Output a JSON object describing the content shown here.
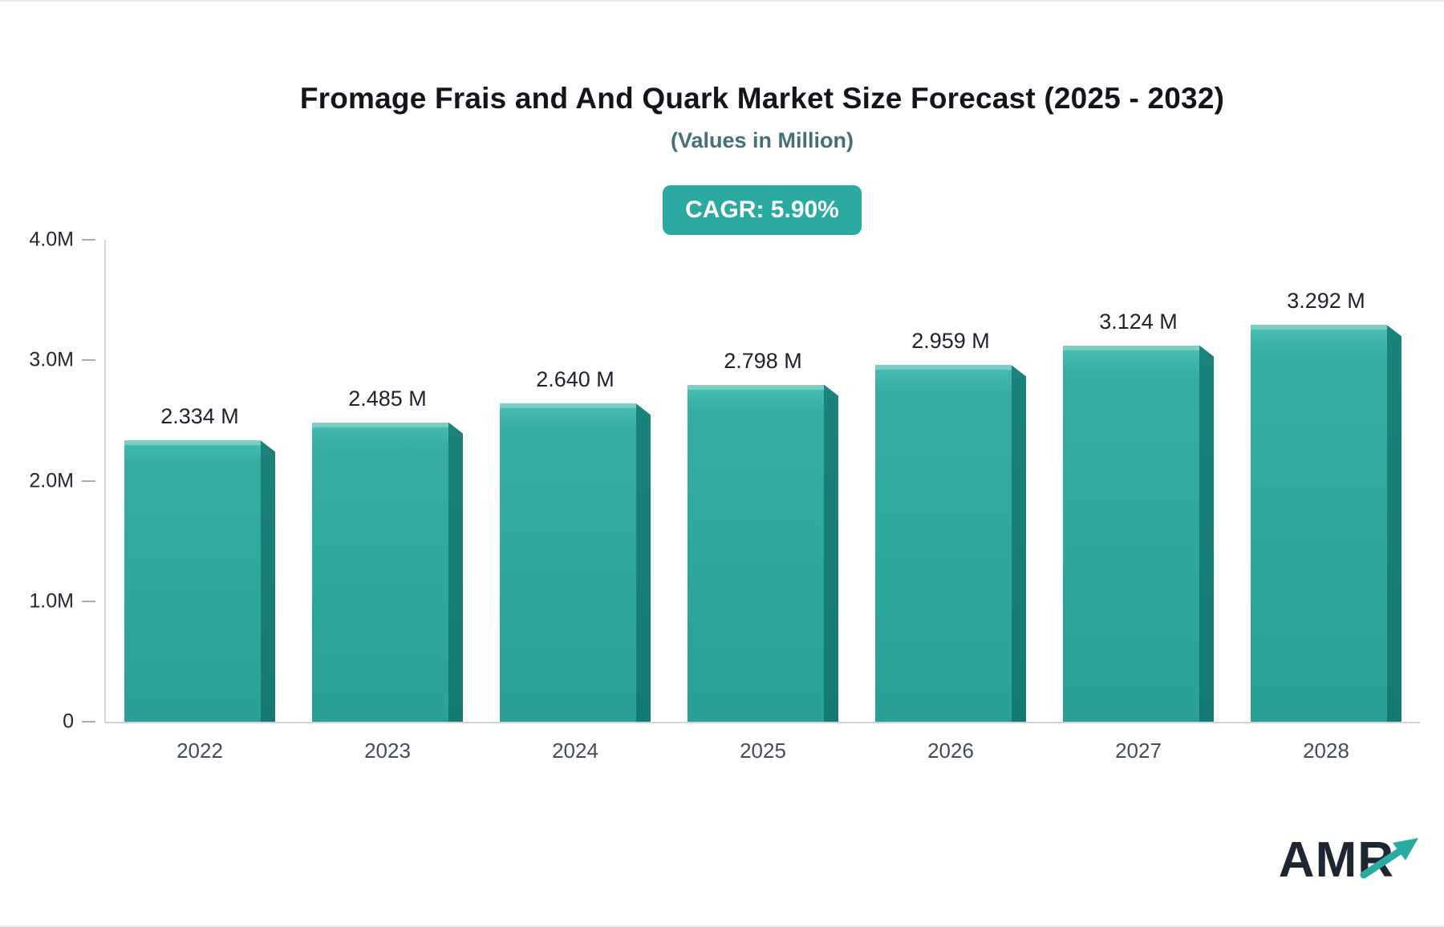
{
  "header": {
    "title": "Fromage Frais and And Quark Market Size Forecast (2025 - 2032)",
    "subtitle": "(Values in Million)"
  },
  "badge": {
    "text": "CAGR: 5.90%"
  },
  "chart_data": {
    "type": "bar",
    "title": "Fromage Frais and And Quark Market Size Forecast (2025 - 2032)",
    "subtitle": "(Values in Million)",
    "categories": [
      "2022",
      "2023",
      "2024",
      "2025",
      "2026",
      "2027",
      "2028"
    ],
    "values": [
      2.334,
      2.485,
      2.64,
      2.798,
      2.959,
      3.124,
      3.292
    ],
    "value_labels": [
      "2.334 M",
      "2.485 M",
      "2.640 M",
      "2.798 M",
      "2.959 M",
      "3.124 M",
      "3.292 M"
    ],
    "xlabel": "",
    "ylabel": "",
    "ylim": [
      0,
      4.0
    ],
    "yticks": [
      {
        "label": "0",
        "value": 0
      },
      {
        "label": "1.0M",
        "value": 1.0
      },
      {
        "label": "2.0M",
        "value": 2.0
      },
      {
        "label": "3.0M",
        "value": 3.0
      },
      {
        "label": "4.0M",
        "value": 4.0
      }
    ],
    "grid": false,
    "legend": false,
    "colors": {
      "bar_face_top": "#49beb3",
      "bar_face_bottom": "#2aa096",
      "bar_side": "#157a72",
      "badge_bg": "#2baaa1",
      "axis_line": "#d4d8dc"
    }
  },
  "branding": {
    "logo_text": "AMR",
    "arrow_color": "#2baaa1"
  }
}
